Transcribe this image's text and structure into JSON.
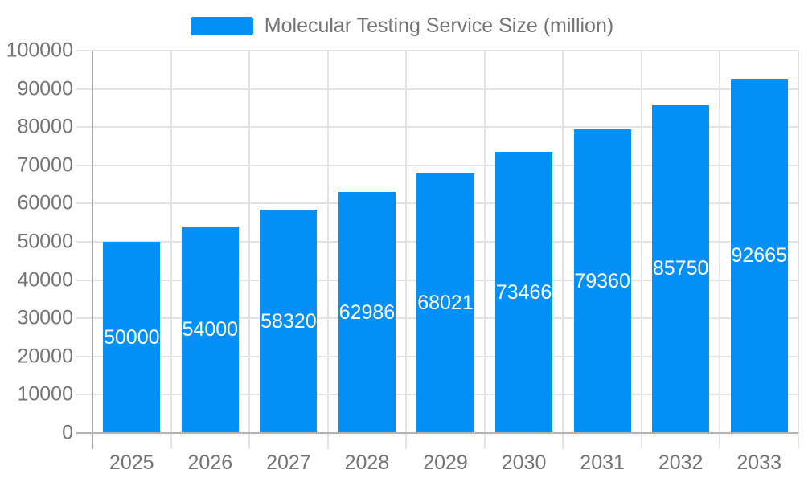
{
  "chart_data": {
    "type": "bar",
    "title": "Molecular Testing Service Size (million)",
    "categories": [
      "2025",
      "2026",
      "2027",
      "2028",
      "2029",
      "2030",
      "2031",
      "2032",
      "2033"
    ],
    "values": [
      50000,
      54000,
      58320,
      62986,
      68021,
      73466,
      79360,
      85750,
      92665
    ],
    "value_labels": [
      "50000",
      "54000",
      "58320",
      "62986",
      "68021",
      "73466",
      "79360",
      "85750",
      "92665"
    ],
    "xlabel": "",
    "ylabel": "",
    "ylim": [
      0,
      100000
    ],
    "yticks": [
      "0",
      "10000",
      "20000",
      "30000",
      "40000",
      "50000",
      "60000",
      "70000",
      "80000",
      "90000",
      "100000"
    ],
    "grid": true,
    "legend_position": "top-center"
  },
  "legend": {
    "label": "Molecular Testing Service Size (million)"
  },
  "colors": {
    "bar": "#0590f8",
    "grid": "#e3e3e3",
    "axis_x": "#b3b3b3",
    "axis_y": "#a6a6a6",
    "text": "#757575",
    "value_text": "#ffffff",
    "background": "#ffffff"
  }
}
